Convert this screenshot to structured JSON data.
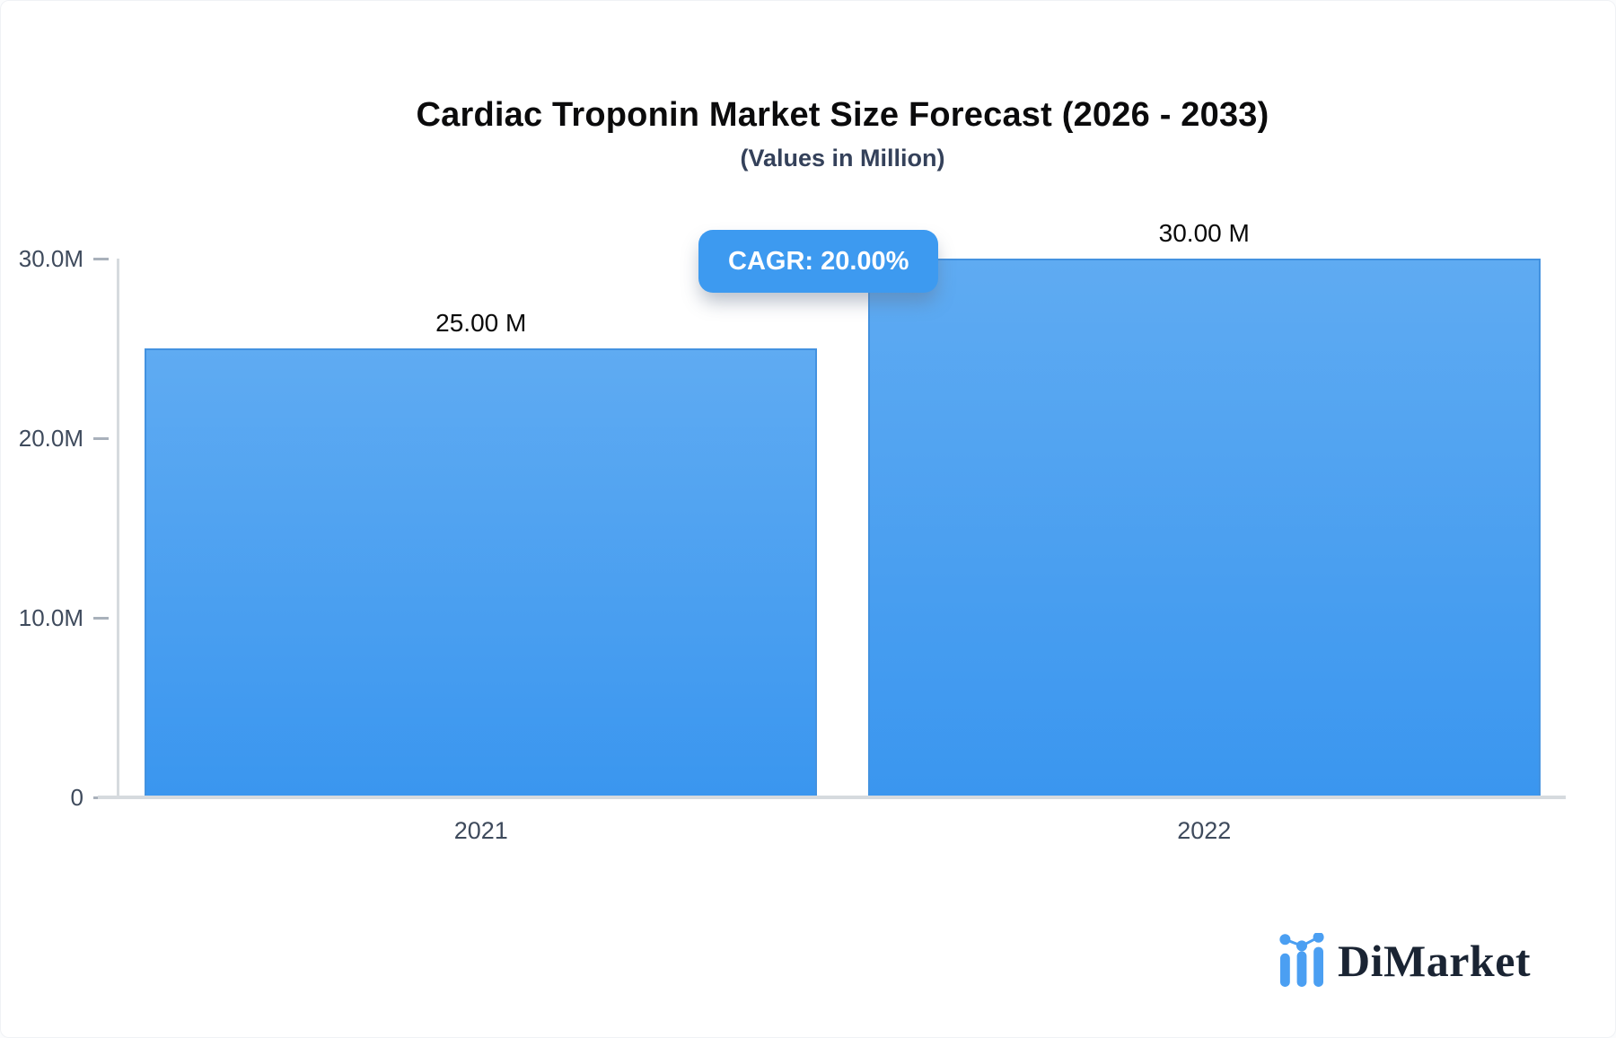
{
  "badge": {
    "label": "CAGR: 20.00%"
  },
  "logo": {
    "text": "DiMarket",
    "icon": "bar-line-chart-icon"
  },
  "colors": {
    "badge_bg": "#3D9AF0",
    "bar_top": "#5FABF2",
    "bar_bottom": "#3A96EF",
    "bar_border": "#4392E0",
    "axis_line": "#D6DADE",
    "tick_color": "#A9B1BB",
    "axis_label": "#3E4A5C",
    "value_label": "#0A0A0A",
    "logo_blue": "#4B9FF2",
    "logo_text": "#1A2433"
  },
  "chart_data": {
    "type": "bar",
    "title": "Cardiac Troponin Market Size Forecast (2026 - 2033)",
    "subtitle": "(Values in Million)",
    "categories": [
      "2021",
      "2022"
    ],
    "values": [
      25,
      30
    ],
    "unit": "Million",
    "value_labels": [
      "25.00 M",
      "30.00 M"
    ],
    "xlabel": "",
    "ylabel": "",
    "ylim": [
      0,
      30
    ],
    "yticks": [
      {
        "value": 0,
        "label": "0"
      },
      {
        "value": 10,
        "label": "10.0M"
      },
      {
        "value": 20,
        "label": "20.0M"
      },
      {
        "value": 30,
        "label": "30.0M"
      }
    ],
    "grid": false,
    "legend": false,
    "annotations": [
      {
        "text": "CAGR: 20.00%",
        "position": "above-plot-center"
      }
    ]
  }
}
